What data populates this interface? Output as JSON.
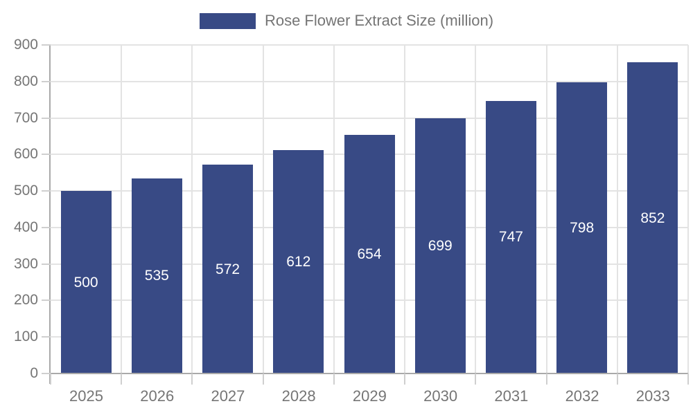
{
  "chart_data": {
    "type": "bar",
    "title": "Rose Flower Extract Size (million)",
    "categories": [
      "2025",
      "2026",
      "2027",
      "2028",
      "2029",
      "2030",
      "2031",
      "2032",
      "2033"
    ],
    "values": [
      500,
      535,
      572,
      612,
      654,
      699,
      747,
      798,
      852
    ],
    "xlabel": "",
    "ylabel": "",
    "ylim": [
      0,
      900
    ],
    "ytick_interval": 100,
    "yticks": [
      0,
      100,
      200,
      300,
      400,
      500,
      600,
      700,
      800,
      900
    ],
    "grid": true,
    "legend_position": "top-center",
    "bar_value_labels_inside": true,
    "colors": {
      "bar": "#384A85",
      "bar_label": "#ffffff",
      "axis_text": "#757575",
      "gridline": "#e3e3e3",
      "axis_line": "#a9a9a9",
      "tick": "#cfcfcf"
    }
  }
}
